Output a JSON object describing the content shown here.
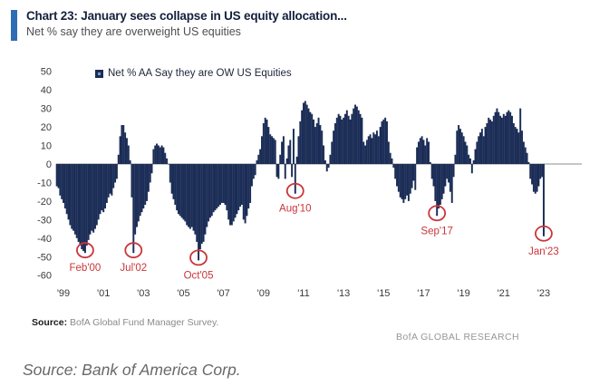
{
  "header": {
    "title": "Chart 23: January sees collapse in US equity allocation...",
    "subtitle": "Net % say they are overweight US equities"
  },
  "legend": {
    "label": "Net % AA Say they are OW US Equities"
  },
  "footer": {
    "source_label": "Source:",
    "source_text": " BofA Global Fund Manager Survey.",
    "brand": "BofA GLOBAL RESEARCH"
  },
  "caption": "Source: Bank of America Corp.",
  "colors": {
    "bar": "#1b2d56",
    "axis_line": "#8c8c8c",
    "tick_text": "#3a3a3a",
    "annotation": "#c9353a",
    "accent_bar": "#2e6db4"
  },
  "chart_data": {
    "type": "bar",
    "title": "Chart 23: January sees collapse in US equity allocation...",
    "subtitle": "Net % say they are overweight US equities",
    "series_name": "Net % AA Say they are OW US Equities",
    "frequency": "monthly",
    "x_start": "Sep'98",
    "x_end": "Jan'23",
    "ylim": [
      -60,
      50
    ],
    "ytick_step": 10,
    "grid": false,
    "legend_position": "top",
    "xtick_labels": [
      "'99",
      "'01",
      "'03",
      "'05",
      "'07",
      "'09",
      "'11",
      "'13",
      "'15",
      "'17",
      "'19",
      "'21",
      "'23"
    ],
    "xtick_indices": [
      4,
      28,
      52,
      76,
      100,
      124,
      148,
      172,
      196,
      220,
      244,
      268,
      292
    ],
    "values": [
      -12,
      -13,
      -17,
      -19,
      -21,
      -24,
      -27,
      -30,
      -33,
      -35,
      -36,
      -38,
      -40,
      -42,
      -44,
      -46,
      -47,
      -48,
      -44,
      -41,
      -38,
      -36,
      -37,
      -35,
      -33,
      -30,
      -27,
      -25,
      -26,
      -24,
      -21,
      -18,
      -16,
      -17,
      -13,
      -10,
      -8,
      5,
      15,
      21,
      21,
      17,
      14,
      10,
      2,
      -18,
      -48,
      -38,
      -34,
      -31,
      -28,
      -26,
      -24,
      -22,
      -20,
      -15,
      -10,
      -5,
      8,
      10,
      11,
      10,
      9,
      10,
      9,
      6,
      3,
      0,
      -10,
      -16,
      -19,
      -22,
      -25,
      -27,
      -28,
      -29,
      -30,
      -31,
      -33,
      -34,
      -35,
      -34,
      -36,
      -38,
      -42,
      -52,
      -46,
      -43,
      -42,
      -38,
      -34,
      -31,
      -29,
      -28,
      -26,
      -25,
      -24,
      -23,
      -22,
      -21,
      -21,
      -22,
      -25,
      -30,
      -33,
      -33,
      -31,
      -29,
      -27,
      -25,
      -23,
      -22,
      -30,
      -32,
      -28,
      -24,
      -21,
      -12,
      -8,
      -6,
      2,
      5,
      8,
      15,
      22,
      25,
      24,
      20,
      16,
      15,
      14,
      13,
      -7,
      -8,
      5,
      12,
      15,
      -8,
      3,
      10,
      13,
      -7,
      19,
      -16,
      4,
      15,
      23,
      29,
      33,
      34,
      32,
      30,
      28,
      27,
      24,
      20,
      22,
      25,
      21,
      18,
      10,
      2,
      -4,
      -2,
      5,
      12,
      18,
      22,
      25,
      27,
      26,
      24,
      25,
      27,
      29,
      26,
      24,
      27,
      30,
      32,
      31,
      29,
      27,
      25,
      12,
      10,
      13,
      15,
      16,
      14,
      17,
      16,
      18,
      15,
      20,
      23,
      24,
      25,
      23,
      12,
      6,
      3,
      -2,
      -8,
      -12,
      -15,
      -18,
      -19,
      -21,
      -19,
      -17,
      -20,
      -16,
      -13,
      -9,
      -14,
      9,
      12,
      14,
      15,
      13,
      10,
      14,
      12,
      1,
      -8,
      -12,
      -20,
      -28,
      -24,
      -22,
      -19,
      -16,
      -12,
      -8,
      -10,
      -15,
      -21,
      -7,
      5,
      18,
      21,
      19,
      17,
      15,
      12,
      10,
      5,
      3,
      -5,
      2,
      8,
      12,
      15,
      17,
      19,
      15,
      20,
      22,
      25,
      24,
      23,
      26,
      28,
      30,
      28,
      26,
      25,
      27,
      26,
      28,
      29,
      28,
      26,
      22,
      20,
      19,
      17,
      30,
      18,
      12,
      9,
      6,
      1,
      -8,
      -11,
      -15,
      -16,
      -15,
      -12,
      -8,
      -7,
      -39
    ],
    "annotations": [
      {
        "label": "Feb'00",
        "index": 17,
        "value": -48
      },
      {
        "label": "Jul'02",
        "index": 46,
        "value": -48
      },
      {
        "label": "Oct'05",
        "index": 85,
        "value": -52
      },
      {
        "label": "Aug'10",
        "index": 143,
        "value": -16
      },
      {
        "label": "Sep'17",
        "index": 228,
        "value": -28
      },
      {
        "label": "Jan'23",
        "index": 292,
        "value": -39
      }
    ]
  }
}
